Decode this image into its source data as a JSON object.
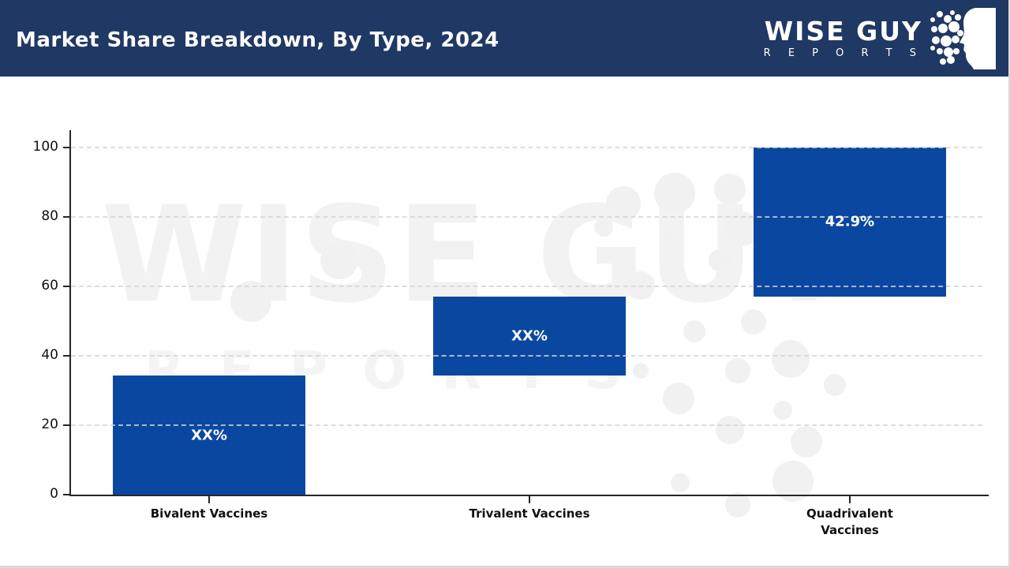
{
  "header": {
    "title": "Market Share Breakdown, By Type, 2024",
    "logo": {
      "line1": "WISE GUY",
      "line2": "R E P O R T S"
    }
  },
  "watermark": {
    "line1": "WISE GUY",
    "line2": "REPORTS"
  },
  "chart_data": {
    "type": "bar",
    "subtype": "waterfall-stacked-share",
    "title": "Market Share Breakdown, By Type, 2024",
    "categories": [
      "Bivalent Vaccines",
      "Trivalent Vaccines",
      "Quadrivalent Vaccines"
    ],
    "segments": [
      {
        "category": "Bivalent Vaccines",
        "start": 0,
        "end": 34.3,
        "label": "XX%"
      },
      {
        "category": "Trivalent Vaccines",
        "start": 34.3,
        "end": 57.1,
        "label": "XX%"
      },
      {
        "category": "Quadrivalent Vaccines",
        "start": 57.1,
        "end": 100,
        "label": "42.9%"
      }
    ],
    "y_ticks": [
      0,
      20,
      40,
      60,
      80,
      100
    ],
    "ylim": [
      0,
      105
    ],
    "xlabel": "",
    "ylabel": "",
    "grid": "horizontal-dashed-over-bars",
    "legend": "none",
    "bar_color": "#0a47a0",
    "bar_label_color": "#ffffff",
    "axis_color": "#262626",
    "grid_color": "#d5d5d5",
    "header_bg": "#1f3864",
    "watermark_color": "#f2f2f2"
  }
}
